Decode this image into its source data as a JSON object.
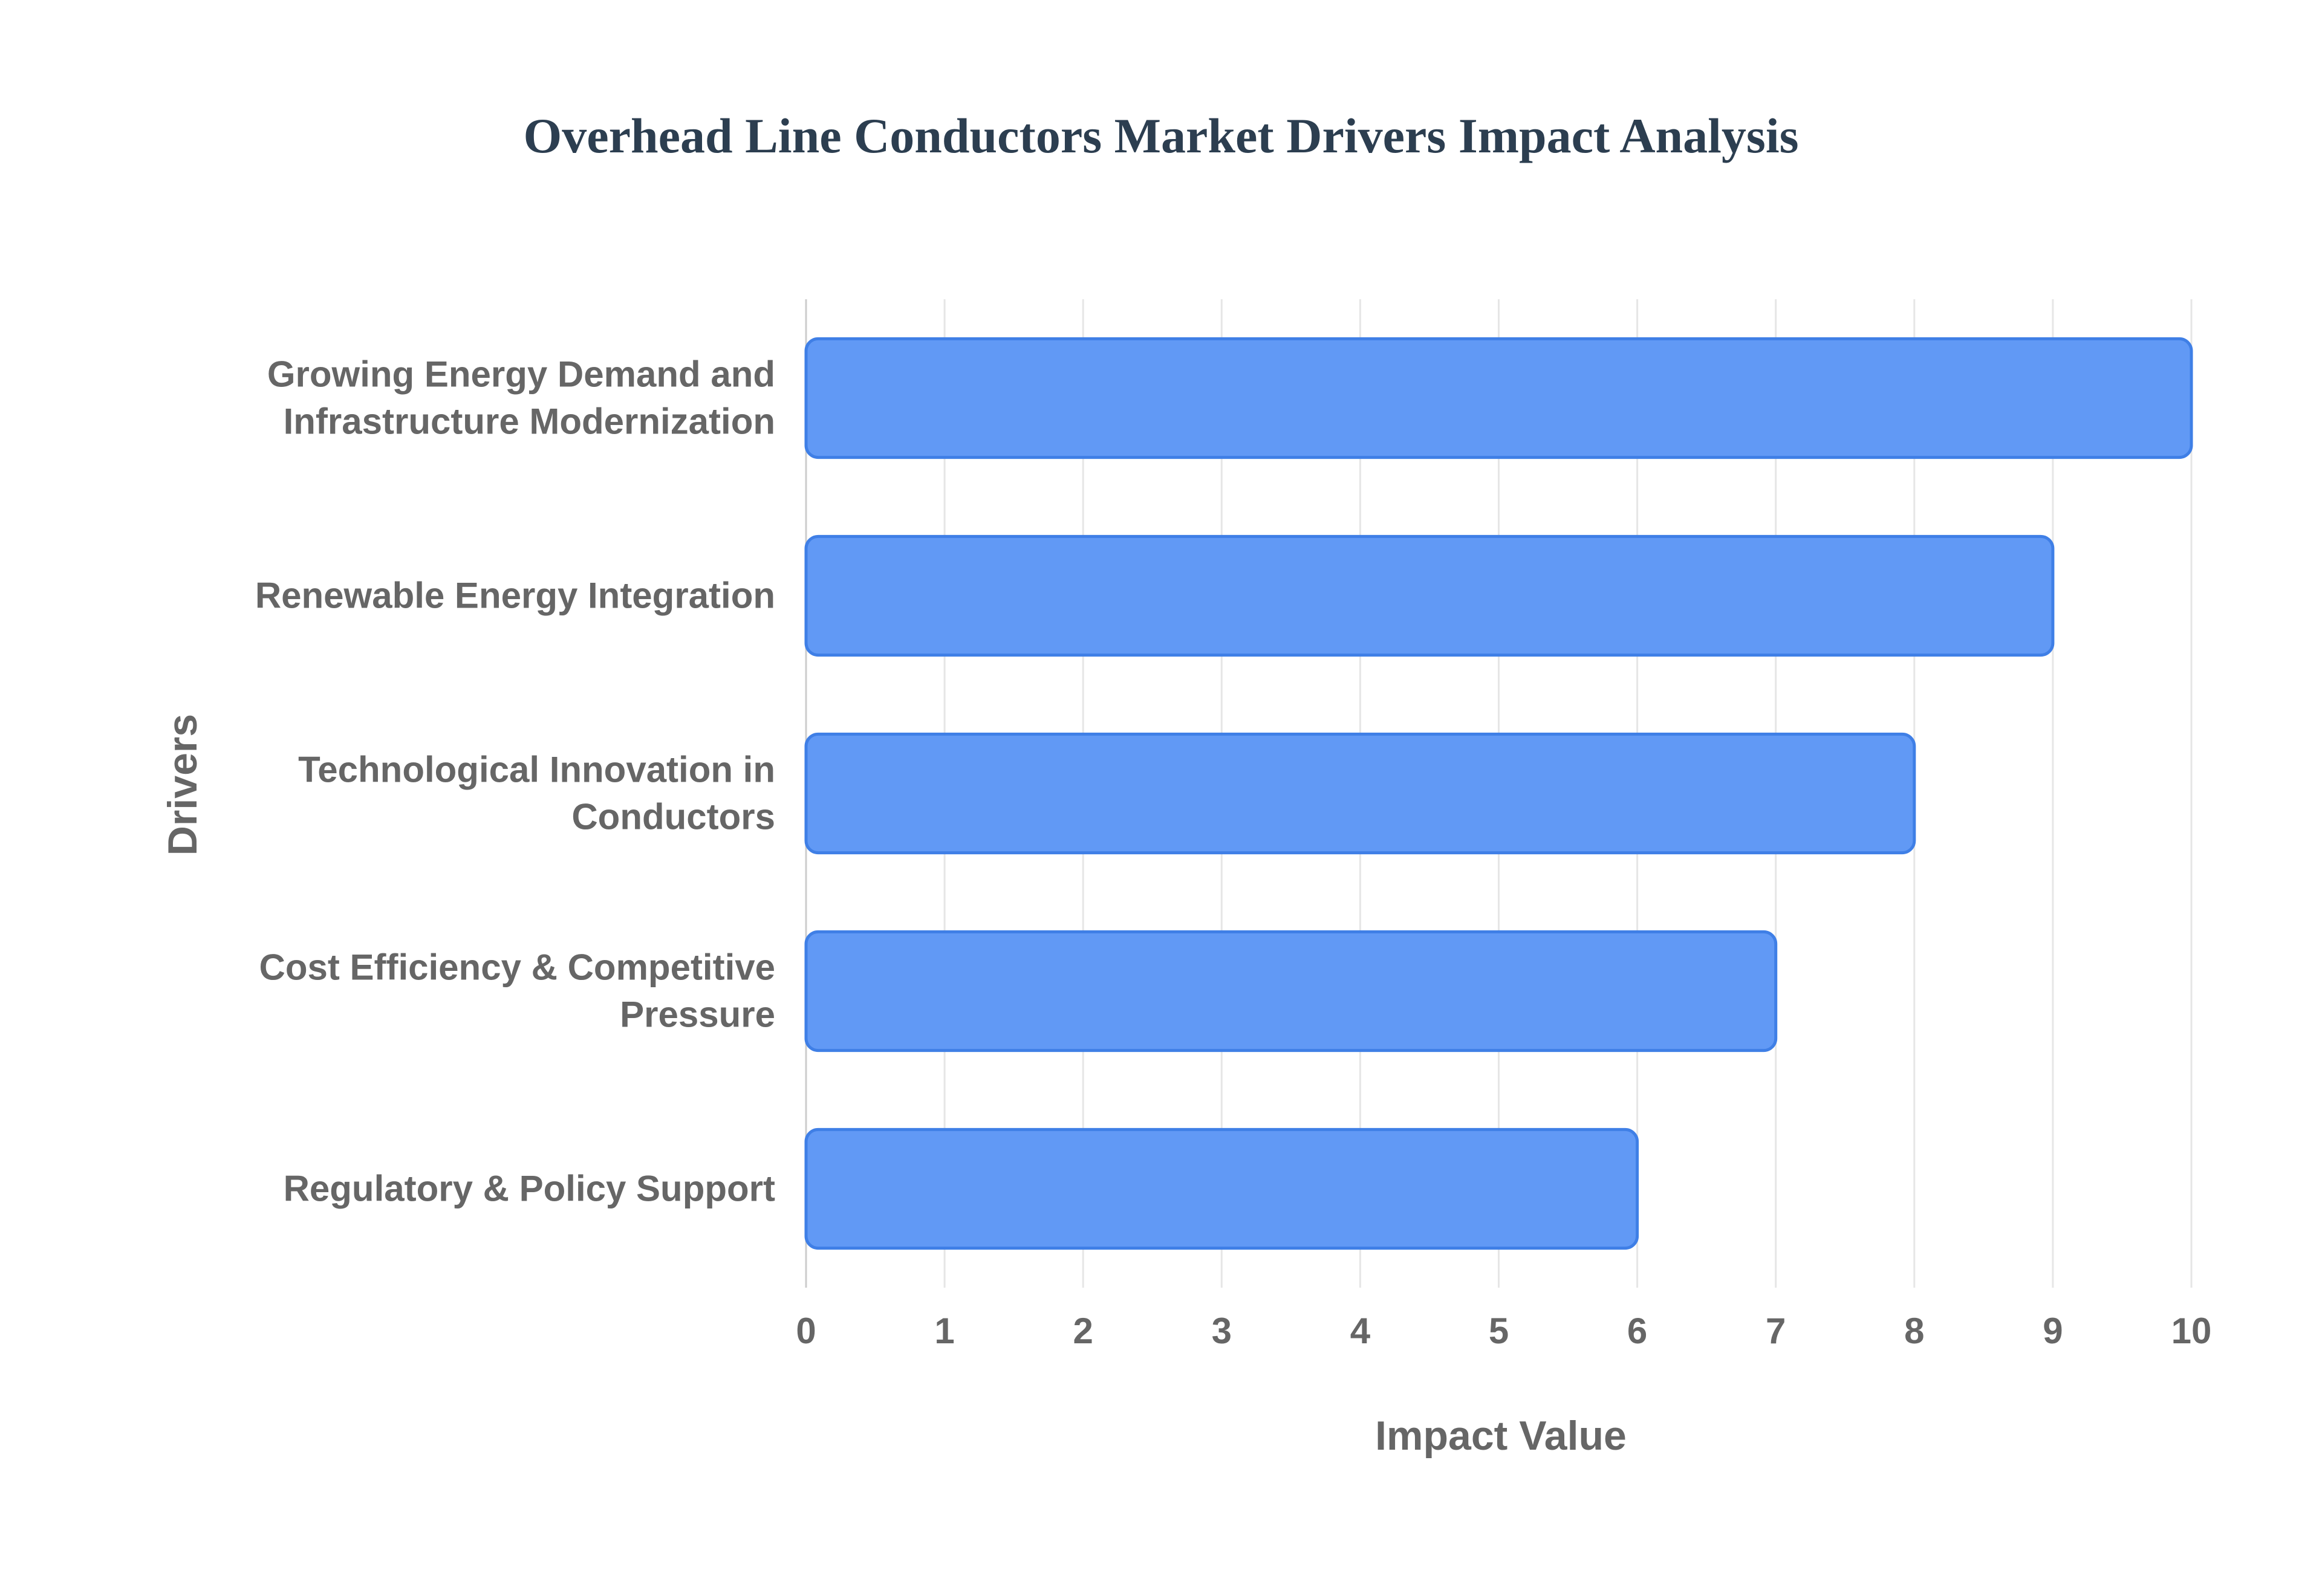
{
  "chart_data": {
    "type": "bar",
    "orientation": "horizontal",
    "title": "Overhead Line Conductors Market Drivers Impact Analysis",
    "xlabel": "Impact Value",
    "ylabel": "Drivers",
    "xlim": [
      0,
      10
    ],
    "xticks": [
      "0",
      "1",
      "2",
      "3",
      "4",
      "5",
      "6",
      "7",
      "8",
      "9",
      "10"
    ],
    "categories": [
      [
        "Growing Energy Demand and",
        "Infrastructure Modernization"
      ],
      [
        "Renewable Energy Integration"
      ],
      [
        "Technological Innovation in",
        "Conductors"
      ],
      [
        "Cost Efficiency & Competitive",
        "Pressure"
      ],
      [
        "Regulatory & Policy Support"
      ]
    ],
    "values": [
      10,
      9,
      8,
      7,
      6
    ],
    "grid": true,
    "legend": "none",
    "colors": {
      "bar_fill": "#6199f5",
      "bar_stroke": "#3f7fe6",
      "grid": "#e6e6e6",
      "axis": "#cccccc",
      "title": "#2c3e50",
      "label": "#666666"
    }
  }
}
